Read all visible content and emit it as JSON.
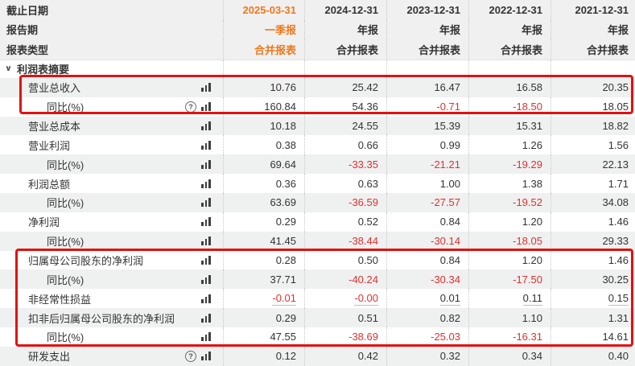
{
  "colors": {
    "accent_orange": "#ef7819",
    "negative_red": "#e03030",
    "annotation_red": "#e60f0f",
    "stripe_gray": "#eff0f0",
    "header_gray": "#f0f0f0"
  },
  "icons": {
    "help": "?",
    "chevron": "∨",
    "bar_chart": "bar-chart-icon"
  },
  "header_rows": [
    {
      "label": "截止日期",
      "values": [
        "2025-03-31",
        "2024-12-31",
        "2023-12-31",
        "2022-12-31",
        "2021-12-31"
      ]
    },
    {
      "label": "报告期",
      "values": [
        "一季报",
        "年报",
        "年报",
        "年报",
        "年报"
      ]
    },
    {
      "label": "报表类型",
      "values": [
        "合并报表",
        "合并报表",
        "合并报表",
        "合并报表",
        "合并报表"
      ]
    }
  ],
  "section": {
    "title": "利润表摘要"
  },
  "data_rows": [
    {
      "label": "营业总收入",
      "indent": 0,
      "help": false,
      "underline": false,
      "values": [
        "10.76",
        "25.42",
        "16.47",
        "16.58",
        "20.35"
      ]
    },
    {
      "label": "同比(%)",
      "indent": 1,
      "help": true,
      "underline": false,
      "values": [
        "160.84",
        "54.36",
        "-0.71",
        "-18.50",
        "18.05"
      ]
    },
    {
      "label": "营业总成本",
      "indent": 0,
      "help": false,
      "underline": false,
      "values": [
        "10.18",
        "24.55",
        "15.39",
        "15.31",
        "18.82"
      ]
    },
    {
      "label": "营业利润",
      "indent": 0,
      "help": false,
      "underline": false,
      "values": [
        "0.38",
        "0.66",
        "0.99",
        "1.26",
        "1.56"
      ]
    },
    {
      "label": "同比(%)",
      "indent": 1,
      "help": false,
      "underline": false,
      "values": [
        "69.64",
        "-33.35",
        "-21.21",
        "-19.29",
        "22.13"
      ]
    },
    {
      "label": "利润总额",
      "indent": 0,
      "help": false,
      "underline": false,
      "values": [
        "0.36",
        "0.63",
        "1.00",
        "1.38",
        "1.71"
      ]
    },
    {
      "label": "同比(%)",
      "indent": 1,
      "help": false,
      "underline": false,
      "values": [
        "63.69",
        "-36.59",
        "-27.57",
        "-19.52",
        "34.08"
      ]
    },
    {
      "label": "净利润",
      "indent": 0,
      "help": false,
      "underline": false,
      "values": [
        "0.29",
        "0.52",
        "0.84",
        "1.20",
        "1.46"
      ]
    },
    {
      "label": "同比(%)",
      "indent": 1,
      "help": false,
      "underline": false,
      "values": [
        "41.45",
        "-38.44",
        "-30.14",
        "-18.05",
        "29.33"
      ]
    },
    {
      "label": "归属母公司股东的净利润",
      "indent": 0,
      "help": false,
      "underline": false,
      "values": [
        "0.28",
        "0.50",
        "0.84",
        "1.20",
        "1.46"
      ]
    },
    {
      "label": "同比(%)",
      "indent": 1,
      "help": false,
      "underline": false,
      "values": [
        "37.71",
        "-40.24",
        "-30.34",
        "-17.50",
        "30.25"
      ]
    },
    {
      "label": "非经常性损益",
      "indent": 0,
      "help": false,
      "underline": true,
      "values": [
        "-0.01",
        "-0.00",
        "0.01",
        "0.11",
        "0.15"
      ]
    },
    {
      "label": "扣非后归属母公司股东的净利润",
      "indent": 0,
      "help": false,
      "underline": false,
      "values": [
        "0.29",
        "0.51",
        "0.82",
        "1.10",
        "1.31"
      ]
    },
    {
      "label": "同比(%)",
      "indent": 1,
      "help": false,
      "underline": false,
      "values": [
        "47.55",
        "-38.69",
        "-25.03",
        "-16.31",
        "14.61"
      ]
    },
    {
      "label": "研发支出",
      "indent": 0,
      "help": true,
      "underline": false,
      "values": [
        "0.12",
        "0.42",
        "0.32",
        "0.34",
        "0.40"
      ]
    }
  ],
  "annotations": [
    {
      "name": "revenue-highlight",
      "rows": "营业总收入 + 同比(%)"
    },
    {
      "name": "net-profit-highlight",
      "rows": "归属母公司股东的净利润 … 扣非后同比(%)"
    }
  ]
}
